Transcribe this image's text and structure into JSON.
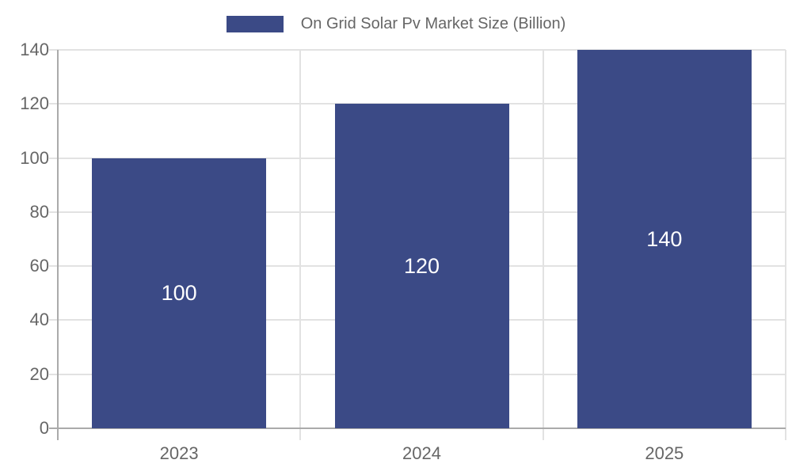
{
  "chart_data": {
    "type": "bar",
    "title": "",
    "series_name": "On Grid Solar Pv Market Size (Billion)",
    "categories": [
      "2023",
      "2024",
      "2025"
    ],
    "values": [
      100,
      120,
      140
    ],
    "bar_value_labels": [
      "100",
      "120",
      "140"
    ],
    "xlabel": "",
    "ylabel": "",
    "ylim": [
      0,
      140
    ],
    "yticks": [
      0,
      20,
      40,
      60,
      80,
      100,
      120,
      140
    ],
    "grid": true,
    "legend_position": "top-center",
    "colors": {
      "bar": "#3B4A86",
      "bar_label_text": "#ffffff",
      "axis_text": "#666666",
      "axis_line": "#aaaaaa",
      "gridline": "#e2e2e2",
      "background": "#ffffff"
    }
  }
}
